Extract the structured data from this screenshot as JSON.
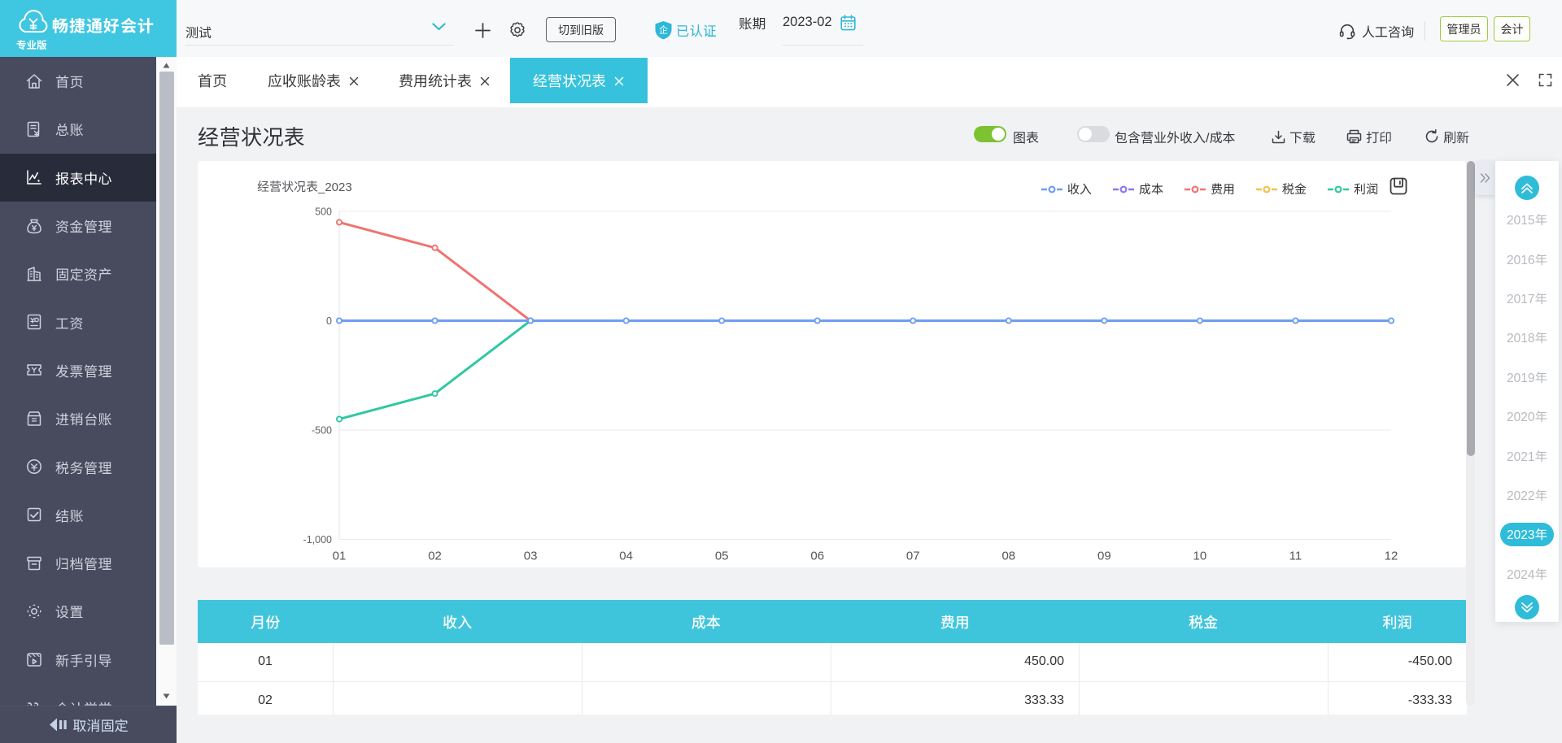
{
  "app": {
    "name": "畅捷通好会计",
    "edition": "专业版"
  },
  "sidebar": {
    "items": [
      {
        "label": "首页",
        "icon": "home-icon",
        "active": false
      },
      {
        "label": "总账",
        "icon": "ledger-icon",
        "active": false
      },
      {
        "label": "报表中心",
        "icon": "report-center-icon",
        "active": true
      },
      {
        "label": "资金管理",
        "icon": "funds-icon",
        "active": false
      },
      {
        "label": "固定资产",
        "icon": "fixed-assets-icon",
        "active": false
      },
      {
        "label": "工资",
        "icon": "salary-icon",
        "active": false
      },
      {
        "label": "发票管理",
        "icon": "invoice-icon",
        "active": false
      },
      {
        "label": "进销台账",
        "icon": "inventory-icon",
        "active": false
      },
      {
        "label": "税务管理",
        "icon": "tax-icon",
        "active": false
      },
      {
        "label": "结账",
        "icon": "closing-icon",
        "active": false
      },
      {
        "label": "归档管理",
        "icon": "archive-icon",
        "active": false
      },
      {
        "label": "设置",
        "icon": "settings-icon",
        "active": false
      },
      {
        "label": "新手引导",
        "icon": "guide-icon",
        "active": false
      },
      {
        "label": "会计学堂",
        "icon": "school-icon",
        "active": false
      }
    ],
    "unpin_label": "取消固定"
  },
  "topbar": {
    "account_set": "测试",
    "switch_old_label": "切到旧版",
    "certified_label": "已认证",
    "period_label": "账期",
    "period_value": "2023-02",
    "support_label": "人工咨询",
    "admin_label": "管理员",
    "accountant_label": "会计"
  },
  "tabs": [
    {
      "label": "首页",
      "closable": false,
      "active": false
    },
    {
      "label": "应收账龄表",
      "closable": true,
      "active": false
    },
    {
      "label": "费用统计表",
      "closable": true,
      "active": false
    },
    {
      "label": "经营状况表",
      "closable": true,
      "active": true
    }
  ],
  "report": {
    "title": "经营状况表",
    "chart_toggle_label": "图表",
    "chart_toggle_on": true,
    "non_operating_toggle_label": "包含营业外收入/成本",
    "non_operating_toggle_on": false,
    "download_label": "下载",
    "print_label": "打印",
    "refresh_label": "刷新"
  },
  "chart_data": {
    "type": "line",
    "title": "经营状况表_2023",
    "x": [
      "01",
      "02",
      "03",
      "04",
      "05",
      "06",
      "07",
      "08",
      "09",
      "10",
      "11",
      "12"
    ],
    "series": [
      {
        "name": "成本",
        "color": "#8f76f2",
        "values": [
          0,
          0,
          0,
          0,
          0,
          0,
          0,
          0,
          0,
          0,
          0,
          0
        ],
        "markers": []
      },
      {
        "name": "税金",
        "color": "#f2c24e",
        "values": [
          0,
          0,
          0,
          0,
          0,
          0,
          0,
          0,
          0,
          0,
          0,
          0
        ],
        "markers": []
      },
      {
        "name": "费用",
        "color": "#f0736f",
        "values": [
          450,
          333.33,
          0,
          0,
          0,
          0,
          0,
          0,
          0,
          0,
          0,
          0
        ],
        "markers": [
          0,
          1,
          2
        ]
      },
      {
        "name": "利润",
        "color": "#30c8a2",
        "values": [
          -450,
          -333.33,
          0,
          0,
          0,
          0,
          0,
          0,
          0,
          0,
          0,
          0
        ],
        "markers": [
          0,
          1,
          2
        ]
      },
      {
        "name": "收入",
        "color": "#6f9ef2",
        "values": [
          0,
          0,
          0,
          0,
          0,
          0,
          0,
          0,
          0,
          0,
          0,
          0
        ],
        "markers": [
          0,
          1,
          2,
          3,
          4,
          5,
          6,
          7,
          8,
          9,
          10,
          11
        ]
      }
    ],
    "legend_order": [
      "收入",
      "成本",
      "费用",
      "税金",
      "利润"
    ],
    "ylim": [
      -1000,
      500
    ],
    "yticks": [
      {
        "v": 500,
        "label": "500"
      },
      {
        "v": 0,
        "label": "0"
      },
      {
        "v": -500,
        "label": "-500"
      },
      {
        "v": -1000,
        "label": "-1,000"
      }
    ],
    "grid": true,
    "legend_position": "top-right"
  },
  "table": {
    "headers": [
      "月份",
      "收入",
      "成本",
      "费用",
      "税金",
      "利润"
    ],
    "rows": [
      [
        "01",
        "",
        "",
        "450.00",
        "",
        "-450.00"
      ],
      [
        "02",
        "",
        "",
        "333.33",
        "",
        "-333.33"
      ]
    ]
  },
  "year_panel": {
    "years": [
      "2015年",
      "2016年",
      "2017年",
      "2018年",
      "2019年",
      "2020年",
      "2021年",
      "2022年",
      "2023年",
      "2024年"
    ],
    "active_year": "2023年"
  },
  "colors": {
    "brand_cyan": "#3fc7e1",
    "active_tab": "#36c2dc",
    "table_header": "#3fc5db",
    "toggle_on_green": "#7dc230",
    "role_button_border": "#9dcb3f",
    "sidebar_bg": "#474b5d",
    "sidebar_active_bg": "#282c3a"
  }
}
